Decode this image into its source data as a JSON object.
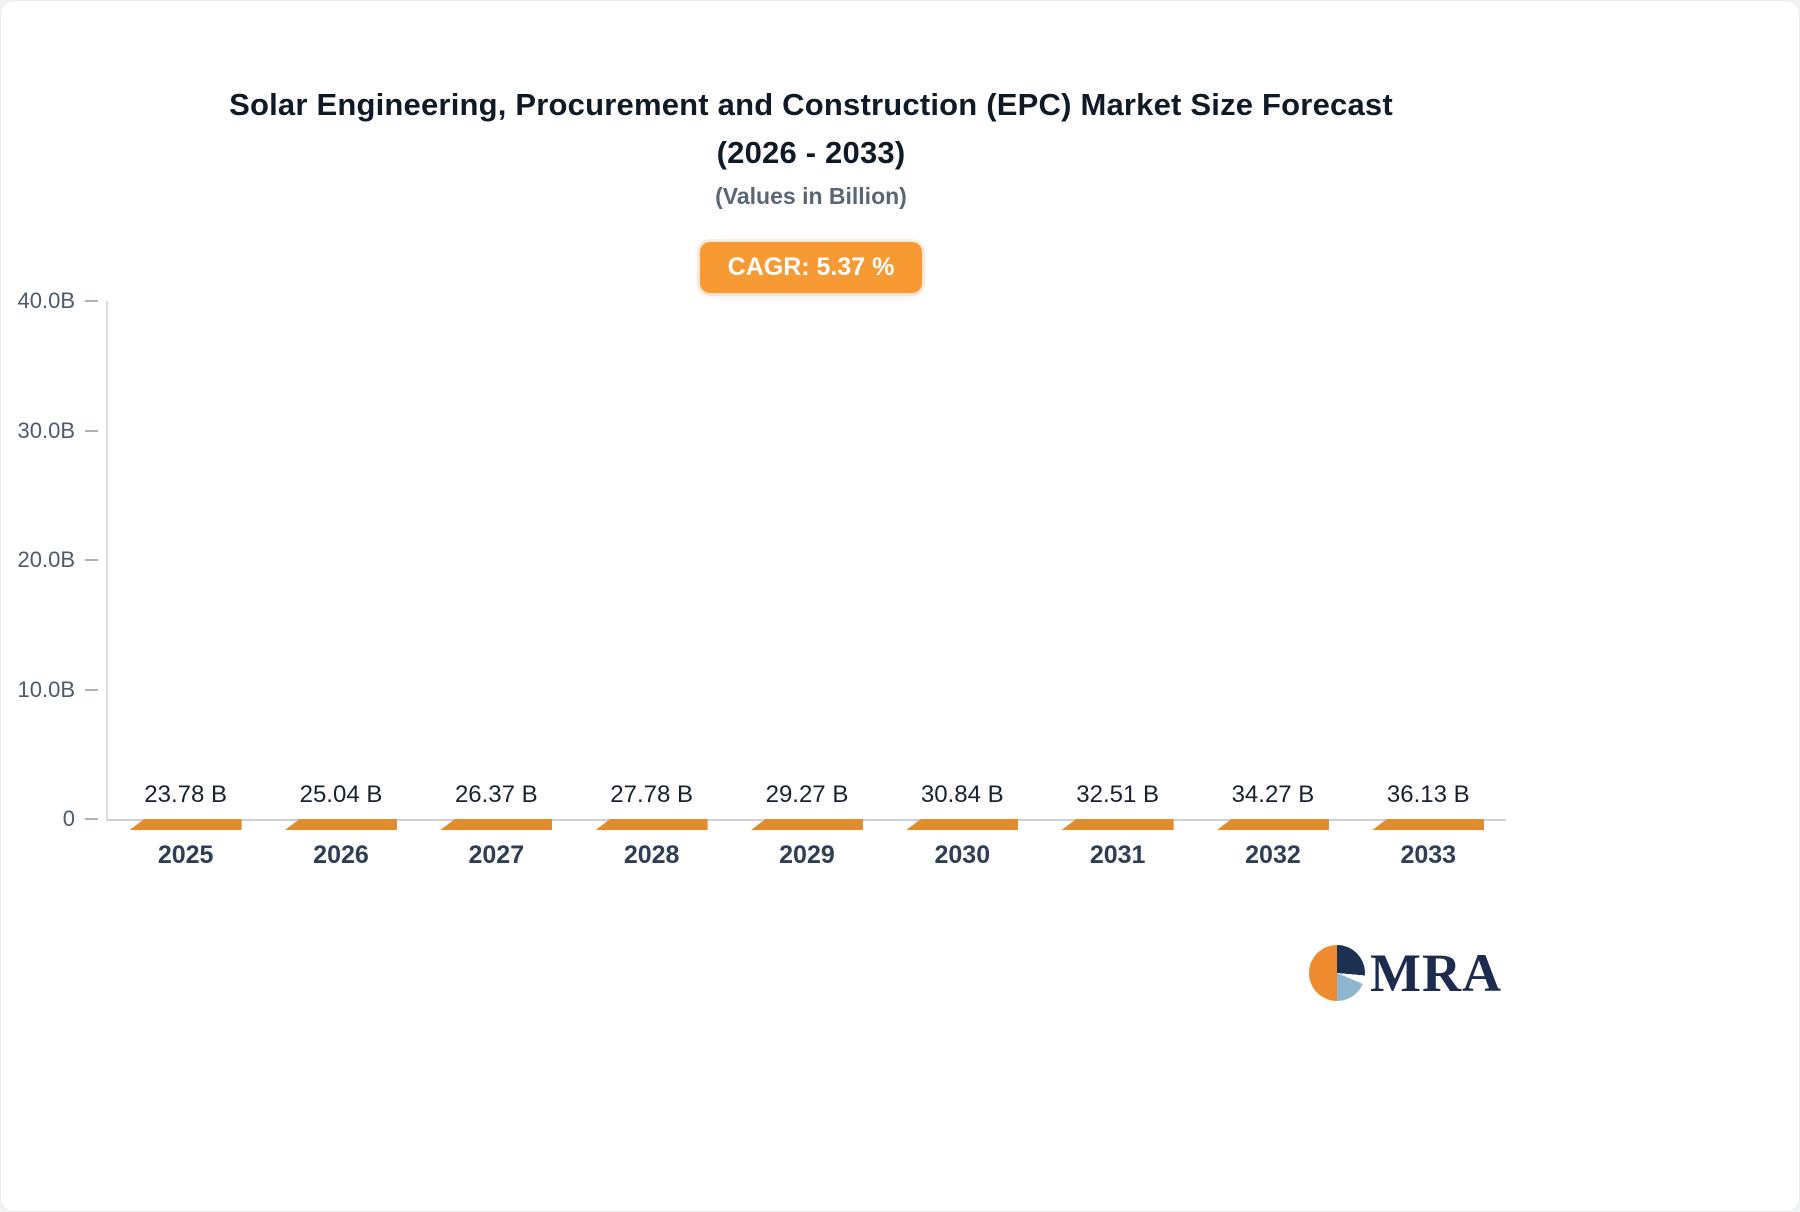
{
  "header": {
    "title_line1": "Solar Engineering, Procurement and Construction (EPC) Market Size Forecast",
    "title_line2": "(2026 - 2033)",
    "subtitle": "(Values in Billion)",
    "cagr_badge": "CAGR: 5.37 %"
  },
  "chart_data": {
    "type": "bar",
    "title": "Solar Engineering, Procurement and Construction (EPC) Market Size Forecast (2026 - 2033)",
    "subtitle": "(Values in Billion)",
    "cagr_percent": 5.37,
    "categories": [
      "2025",
      "2026",
      "2027",
      "2028",
      "2029",
      "2030",
      "2031",
      "2032",
      "2033"
    ],
    "values": [
      23.78,
      25.04,
      26.37,
      27.78,
      29.27,
      30.84,
      32.51,
      34.27,
      36.13
    ],
    "value_labels": [
      "23.78 B",
      "25.04 B",
      "26.37 B",
      "27.78 B",
      "29.27 B",
      "30.84 B",
      "32.51 B",
      "34.27 B",
      "36.13 B"
    ],
    "xlabel": "",
    "ylabel": "",
    "ylim": [
      0,
      40
    ],
    "yticks": [
      {
        "value": 40,
        "label": "40.0B"
      },
      {
        "value": 30,
        "label": "30.0B"
      },
      {
        "value": 20,
        "label": "20.0B"
      },
      {
        "value": 10,
        "label": "10.0B"
      },
      {
        "value": 0,
        "label": "0"
      }
    ],
    "grid": false,
    "legend_position": "none",
    "bar_color": "#F79A3C",
    "bar_side_color": "#B4762F",
    "bar_top_color": "#E18C2F"
  },
  "branding": {
    "logo_text": "MRA"
  },
  "colors": {
    "accent_orange": "#F79A33",
    "title_text": "#101A27",
    "subtitle_text": "#5B6674",
    "axis_label_text": "#4D5A6B",
    "year_label_text": "#2E3E56",
    "logo_navy": "#1C2B4E",
    "logo_light_blue": "#8FB6CF"
  }
}
